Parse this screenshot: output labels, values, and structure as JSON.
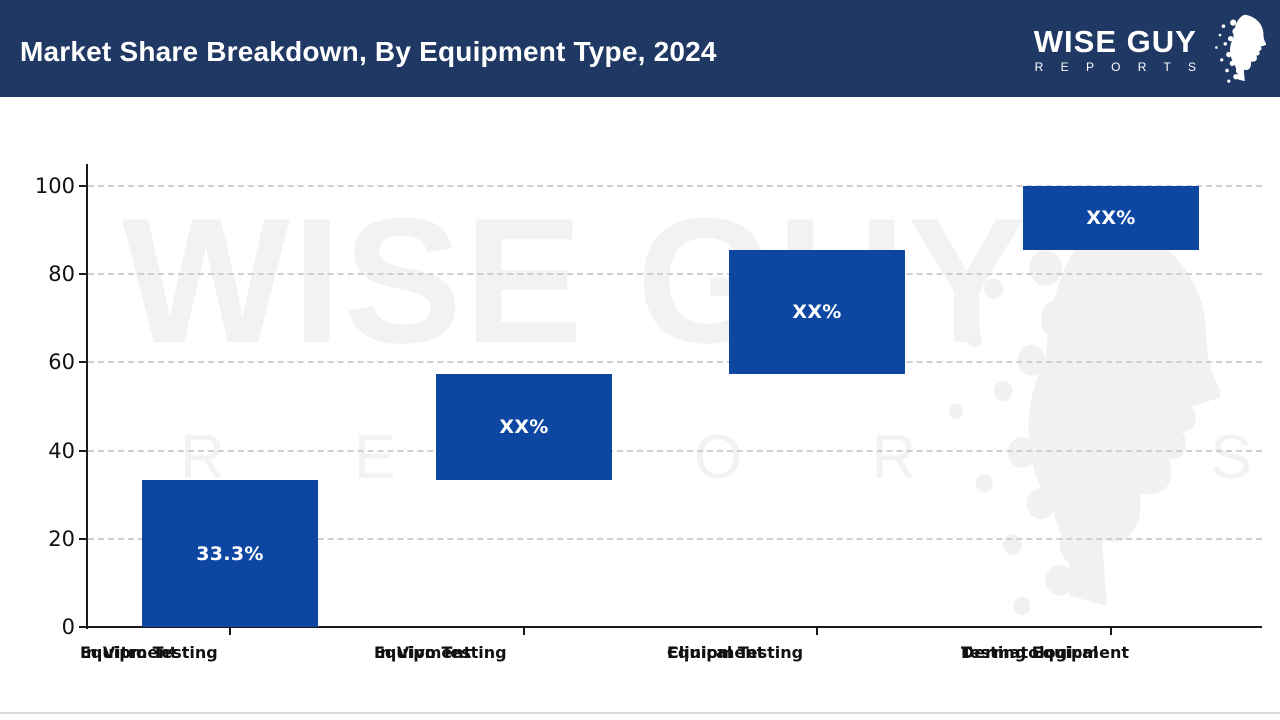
{
  "header": {
    "title": "Market Share Breakdown, By Equipment Type, 2024",
    "bg_color": "#203864",
    "logo": {
      "wordmark": "WISE GUY",
      "subtext": "R E P O R T S",
      "head_icon": "dotted-head-profile-icon"
    }
  },
  "watermark": {
    "line1": "WISE GUY",
    "line2": "R E P O R T S",
    "color": "#f2f2f2"
  },
  "chart_data": {
    "type": "bar",
    "subtype": "waterfall",
    "title": "Market Share Breakdown, By Equipment Type, 2024",
    "categories": [
      "In Vitro Testing Equipment",
      "In Vivo Testing Equipment",
      "Clinical Testing Equipment",
      "Dermatological Testing Equipment"
    ],
    "category_label_lines": [
      [
        "In Vitro Testing",
        "Equipment"
      ],
      [
        "In Vivo Testing",
        "Equipment"
      ],
      [
        "Clinical Testing",
        "Equipment"
      ],
      [
        "Dermatological",
        "Testing Equipment"
      ]
    ],
    "segments": [
      {
        "category": "In Vitro Testing Equipment",
        "start": 0,
        "end": 33.3,
        "label": "33.3%"
      },
      {
        "category": "In Vivo Testing Equipment",
        "start": 33.3,
        "end": 57.3,
        "label": "XX%"
      },
      {
        "category": "Clinical Testing Equipment",
        "start": 57.3,
        "end": 85.4,
        "label": "XX%"
      },
      {
        "category": "Dermatological Testing Equipment",
        "start": 85.4,
        "end": 100,
        "label": "XX%"
      }
    ],
    "yticks": [
      0,
      20,
      40,
      60,
      80,
      100
    ],
    "ylim": [
      0,
      105
    ],
    "xlabel": "",
    "ylabel": "",
    "grid": "horizontal-dashed",
    "legend": "none",
    "bar_color": "#0d47a1",
    "bar_label_color": "#ffffff",
    "axis_color": "#1a1a1a",
    "gridline_color": "#cfcfcf"
  }
}
